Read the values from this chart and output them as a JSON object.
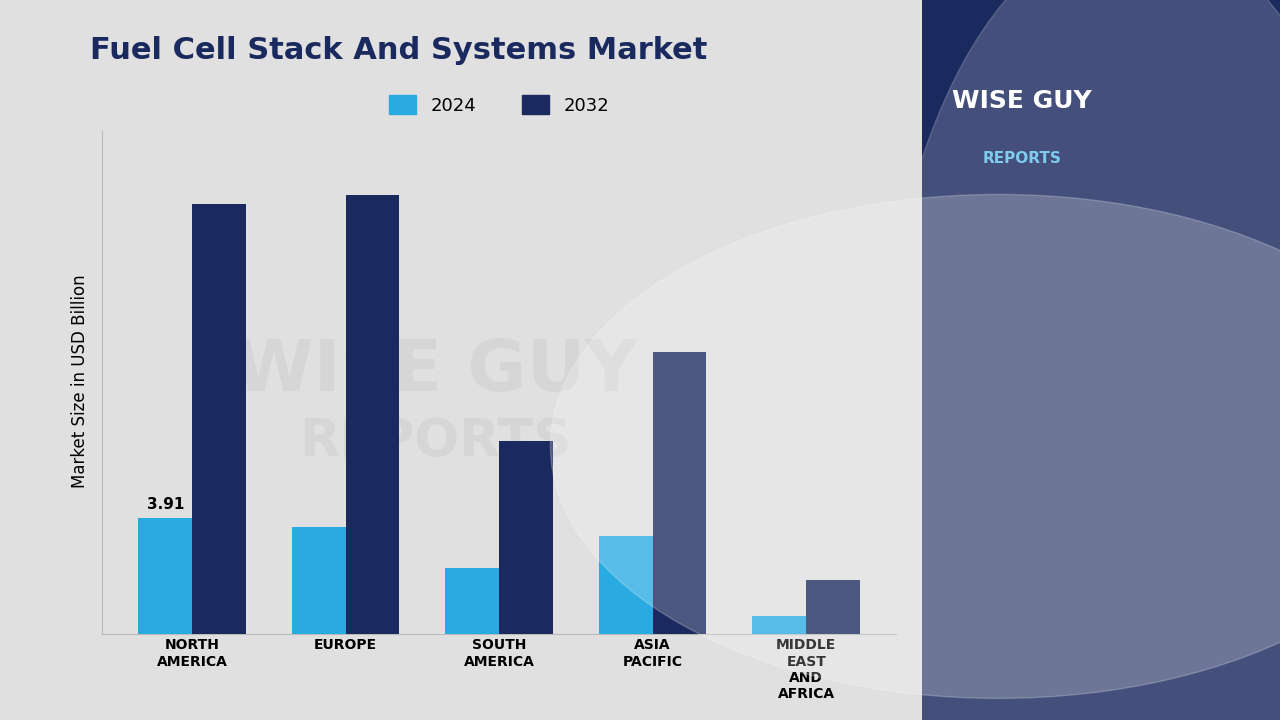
{
  "title": "Fuel Cell Stack And Systems Market",
  "ylabel": "Market Size in USD Billion",
  "categories": [
    "NORTH\nAMERICA",
    "EUROPE",
    "SOUTH\nAMERICA",
    "ASIA\nPACIFIC",
    "MIDDLE\nEAST\nAND\nAFRICA"
  ],
  "values_2024": [
    3.91,
    3.6,
    2.2,
    3.3,
    0.6
  ],
  "values_2032": [
    14.5,
    14.8,
    6.5,
    9.5,
    1.8
  ],
  "color_2024": "#29ABE2",
  "color_2032": "#1B2A5E",
  "annotation_val": "3.91",
  "annotation_region": 0,
  "bg_color": "#E0E0E0",
  "title_color": "#1B2A5E",
  "bar_width": 0.35,
  "ylim": [
    0,
    17
  ],
  "legend_labels": [
    "2024",
    "2032"
  ],
  "panel_bg": "#1B2A5E",
  "wiseguy_line1": "WISE GUY",
  "wiseguy_line2": "REPORTS"
}
